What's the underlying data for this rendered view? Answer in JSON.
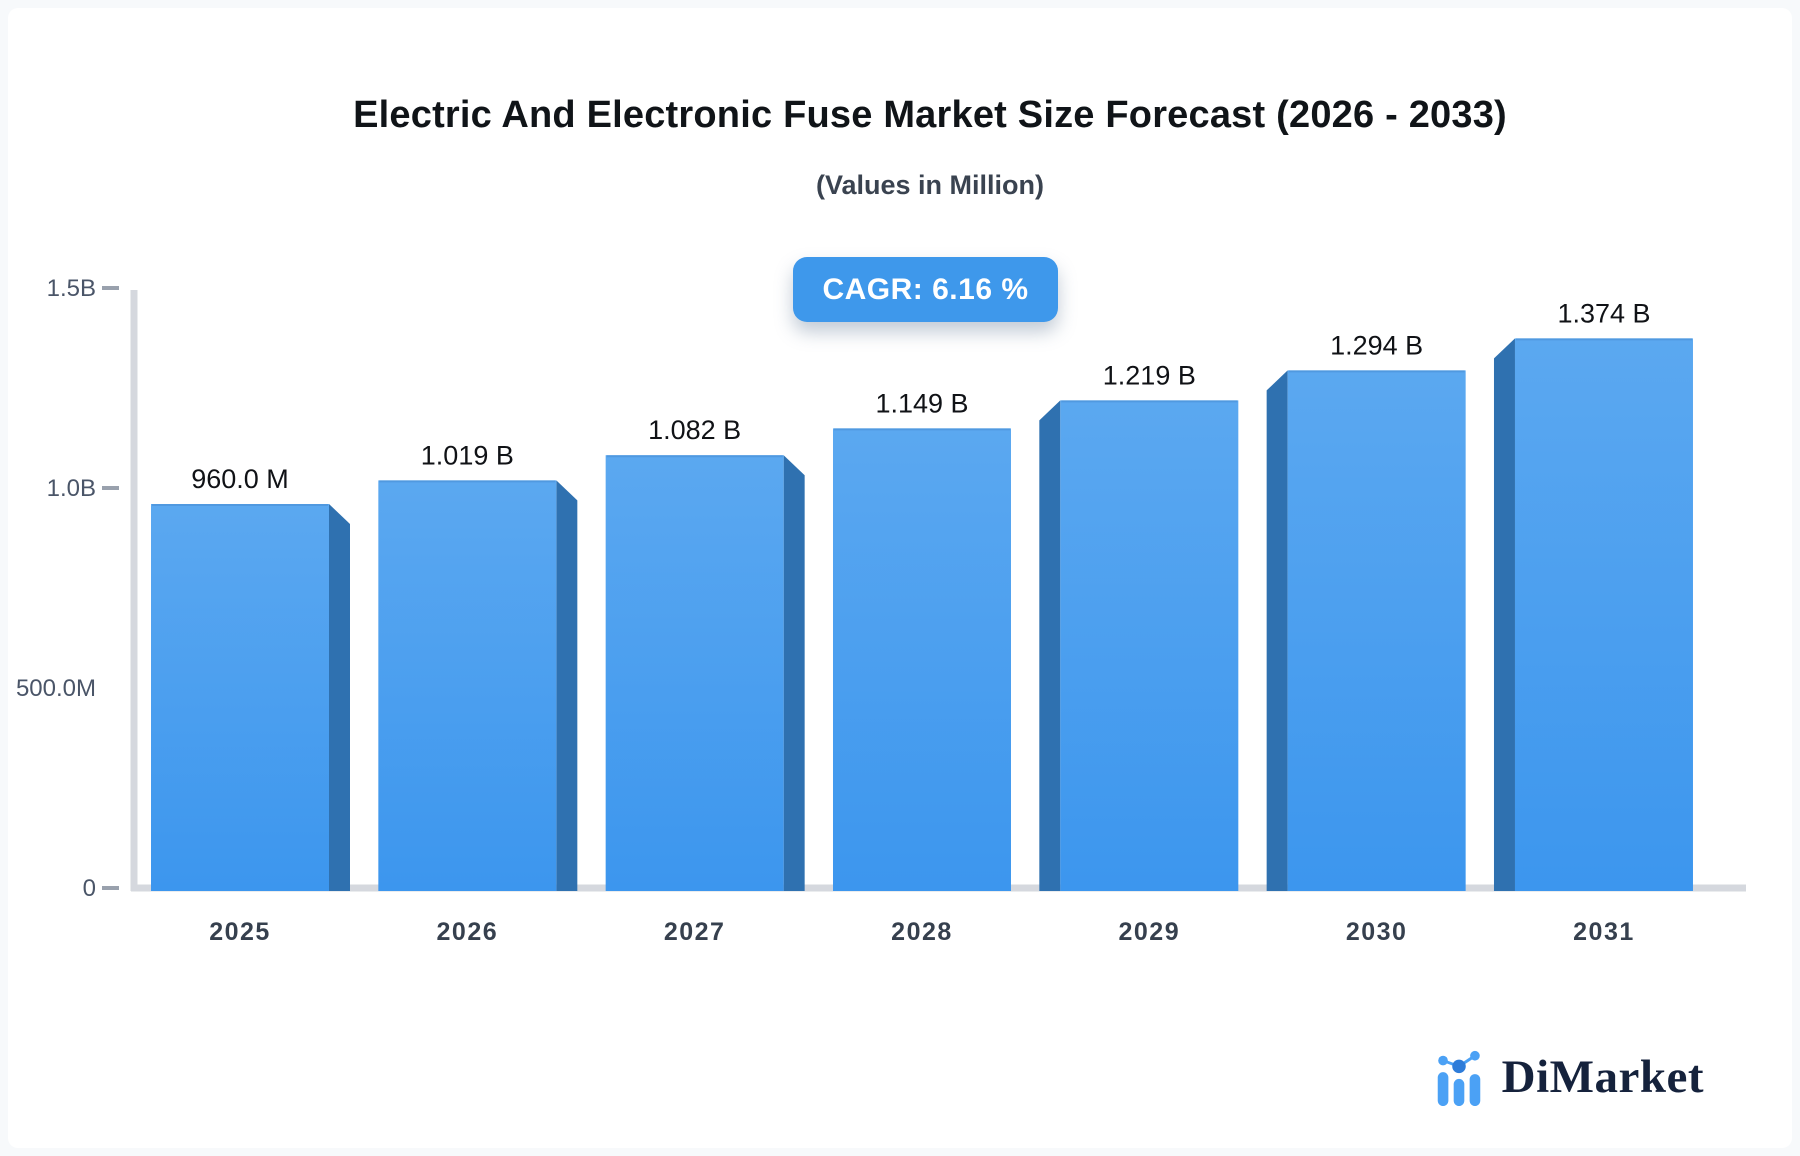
{
  "page": {
    "background": "#f7f9fb",
    "card_background": "#ffffff"
  },
  "header": {
    "title": "Electric And Electronic Fuse Market Size Forecast (2026 - 2033)",
    "subtitle": "(Values in Million)",
    "cagr_badge": "CAGR: 6.16 %"
  },
  "chart_data": {
    "type": "bar",
    "title": "Electric And Electronic Fuse Market Size Forecast (2026 - 2033)",
    "subtitle": "(Values in Million)",
    "categories": [
      "2025",
      "2026",
      "2027",
      "2028",
      "2029",
      "2030",
      "2031"
    ],
    "values_millions": [
      960.0,
      1019,
      1082,
      1149,
      1219,
      1294,
      1374
    ],
    "value_labels": [
      "960.0 M",
      "1.019 B",
      "1.082 B",
      "1.149 B",
      "1.219 B",
      "1.294 B",
      "1.374 B"
    ],
    "cagr_percent": 6.16,
    "ylim_millions": [
      0,
      1500
    ],
    "y_ticks": [
      {
        "label": "1.5B",
        "value_millions": 1500,
        "tick_mark": true
      },
      {
        "label": "1.0B",
        "value_millions": 1000,
        "tick_mark": true
      },
      {
        "label": "500.0M",
        "value_millions": 500,
        "tick_mark": false
      },
      {
        "label": "0",
        "value_millions": 0,
        "tick_mark": true
      }
    ],
    "legend": "none",
    "grid": "off"
  },
  "branding": {
    "logo_text": "DiMarket"
  },
  "colors": {
    "page_bg": "#f7f9fb",
    "card_bg": "#ffffff",
    "bar_top": "#5BA8F0",
    "bar_bottom": "#3C96EE",
    "bar_side": "#2F71B0",
    "bar_edge": "#4E96DD",
    "axis": "#D5D8DE",
    "tick": "#99A1AD",
    "badge_bg": "#3E98EB",
    "badge_text": "#FFFFFF",
    "title_text": "#101418",
    "subtitle_text": "#3A4350",
    "tick_text": "#4A5568",
    "year_text": "#36404E",
    "value_text": "#101216",
    "logo_text": "#15223C",
    "logo_blue": "#4BA1F5",
    "logo_dark_blue": "#2E7CD9"
  }
}
